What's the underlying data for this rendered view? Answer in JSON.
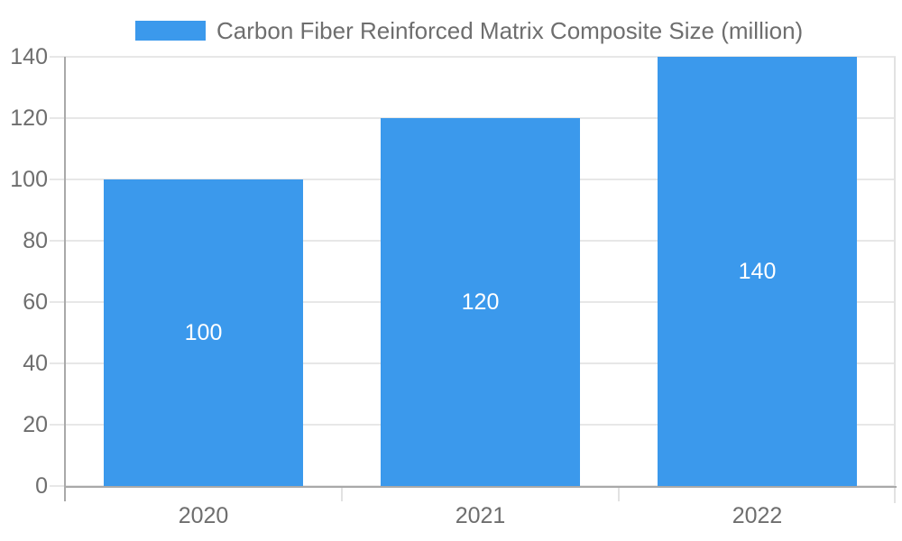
{
  "legend": {
    "label": "Carbon Fiber Reinforced Matrix Composite Size (million)"
  },
  "chart_data": {
    "type": "bar",
    "title": "Carbon Fiber Reinforced Matrix Composite Size (million)",
    "categories": [
      "2020",
      "2021",
      "2022"
    ],
    "series": [
      {
        "name": "Carbon Fiber Reinforced Matrix Composite Size (million)",
        "values": [
          100,
          120,
          140
        ]
      }
    ],
    "bar_value_labels": [
      "100",
      "120",
      "140"
    ],
    "xlabel": "",
    "ylabel": "",
    "ylim": [
      0,
      140
    ],
    "yticks": [
      0,
      20,
      40,
      60,
      80,
      100,
      120,
      140
    ],
    "grid": true,
    "legend_position": "top-center",
    "colors": {
      "bar": "#3b99ec",
      "bar_label": "#ffffff",
      "axis_text": "#6e6e6e",
      "gridline": "#e7e7e7",
      "axis_line": "#a9a9a9",
      "plot_border": "#e2e2e2",
      "background": "#ffffff"
    }
  }
}
